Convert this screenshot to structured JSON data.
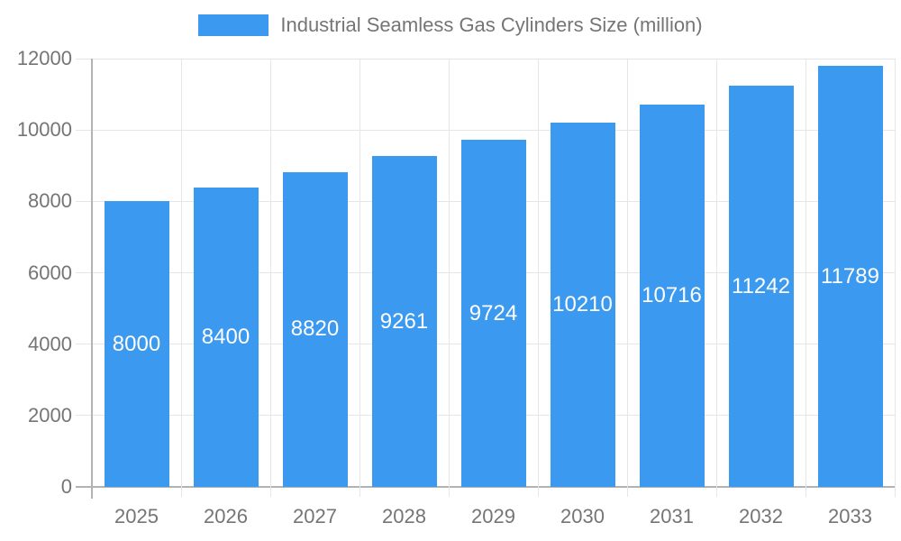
{
  "chart_data": {
    "type": "bar",
    "title": "Industrial Seamless Gas Cylinders Size (million)",
    "legend": {
      "position": "top",
      "label": "Industrial Seamless Gas Cylinders Size (million)"
    },
    "categories": [
      "2025",
      "2026",
      "2027",
      "2028",
      "2029",
      "2030",
      "2031",
      "2032",
      "2033"
    ],
    "series": [
      {
        "name": "Industrial Seamless Gas Cylinders Size (million)",
        "values": [
          8000,
          8400,
          8820,
          9261,
          9724,
          10210,
          10716,
          11242,
          11789
        ]
      }
    ],
    "bar_value_labels": [
      "8000",
      "8400",
      "8820",
      "9261",
      "9724",
      "10210",
      "10716",
      "11242",
      "11789"
    ],
    "xlabel": "",
    "ylabel": "",
    "ylim": [
      0,
      12000
    ],
    "ytick_step": 2000,
    "ytick_labels": [
      "0",
      "2000",
      "4000",
      "6000",
      "8000",
      "10000",
      "12000"
    ],
    "grid": true,
    "colors": {
      "bar": "#3b99f0",
      "bar_label_text": "#ffffff",
      "axis_text": "#757575",
      "gridline": "#e6e6e6",
      "axis_line": "#b3b3b3",
      "background": "#ffffff"
    }
  }
}
